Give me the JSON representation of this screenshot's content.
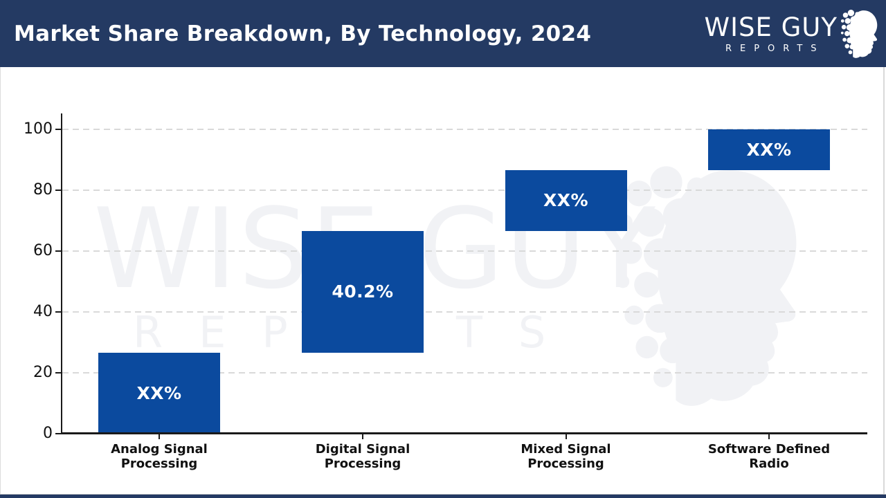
{
  "header": {
    "title": "Market Share Breakdown, By Technology, 2024",
    "logo": {
      "line1": "WISE GUY",
      "line2": "REPORTS"
    }
  },
  "watermark": {
    "line1": "WISE GUY",
    "line2": "REPORTS"
  },
  "colors": {
    "header_bg": "#243a63",
    "footer_bg": "#243a63",
    "bar_fill": "#0b4a9e",
    "bar_label": "#ffffff",
    "gridline": "#d9d9d9",
    "axis": "#1a1a1a",
    "watermark": "#f1f2f5"
  },
  "chart_data": {
    "type": "bar",
    "subtype": "waterfall-floating-bars",
    "title": "Market Share Breakdown, By Technology, 2024",
    "xlabel": "",
    "ylabel": "",
    "ylim": [
      0,
      100
    ],
    "yticks": [
      0,
      20,
      40,
      60,
      80,
      100
    ],
    "grid": "horizontal-dashed",
    "legend": "none",
    "categories": [
      {
        "line1": "Analog Signal",
        "line2": "Processing",
        "full": "Analog Signal Processing"
      },
      {
        "line1": "Digital Signal",
        "line2": "Processing",
        "full": "Digital Signal Processing"
      },
      {
        "line1": "Mixed Signal",
        "line2": "Processing",
        "full": "Mixed Signal Processing"
      },
      {
        "line1": "Software Defined",
        "line2": "Radio",
        "full": "Software Defined Radio"
      }
    ],
    "bars": [
      {
        "start": 0,
        "end": 26.5,
        "segment_size": 26.5,
        "value_label": "XX%",
        "masked": true
      },
      {
        "start": 26.5,
        "end": 66.7,
        "segment_size": 40.2,
        "value_label": "40.2%",
        "masked": false
      },
      {
        "start": 66.7,
        "end": 86.7,
        "segment_size": 20.0,
        "value_label": "XX%",
        "masked": true
      },
      {
        "start": 86.7,
        "end": 100,
        "segment_size": 13.3,
        "value_label": "XX%",
        "masked": true
      }
    ]
  }
}
